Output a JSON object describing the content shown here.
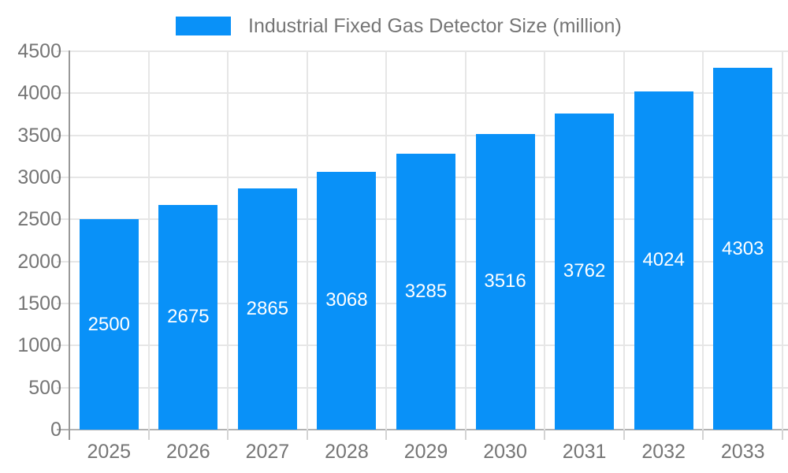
{
  "chart_data": {
    "type": "bar",
    "legend_label": "Industrial Fixed Gas Detector Size (million)",
    "legend_position": "top",
    "categories": [
      "2025",
      "2026",
      "2027",
      "2028",
      "2029",
      "2030",
      "2031",
      "2032",
      "2033"
    ],
    "values": [
      2500,
      2675,
      2865,
      3068,
      3285,
      3516,
      3762,
      4024,
      4303
    ],
    "xlabel": "",
    "ylabel": "",
    "ylim": [
      0,
      4500
    ],
    "ytick_step": 500,
    "grid": true,
    "value_labels": "inside-center"
  },
  "colors": {
    "bar": "#0991f8",
    "bar_value_text": "#ffffff",
    "axis_text": "#757575",
    "gridline": "#e6e6e6",
    "axis_line": "#999999",
    "zero_line": "#b3b3b3",
    "tick": "#d4d4d4",
    "background": "#ffffff"
  }
}
